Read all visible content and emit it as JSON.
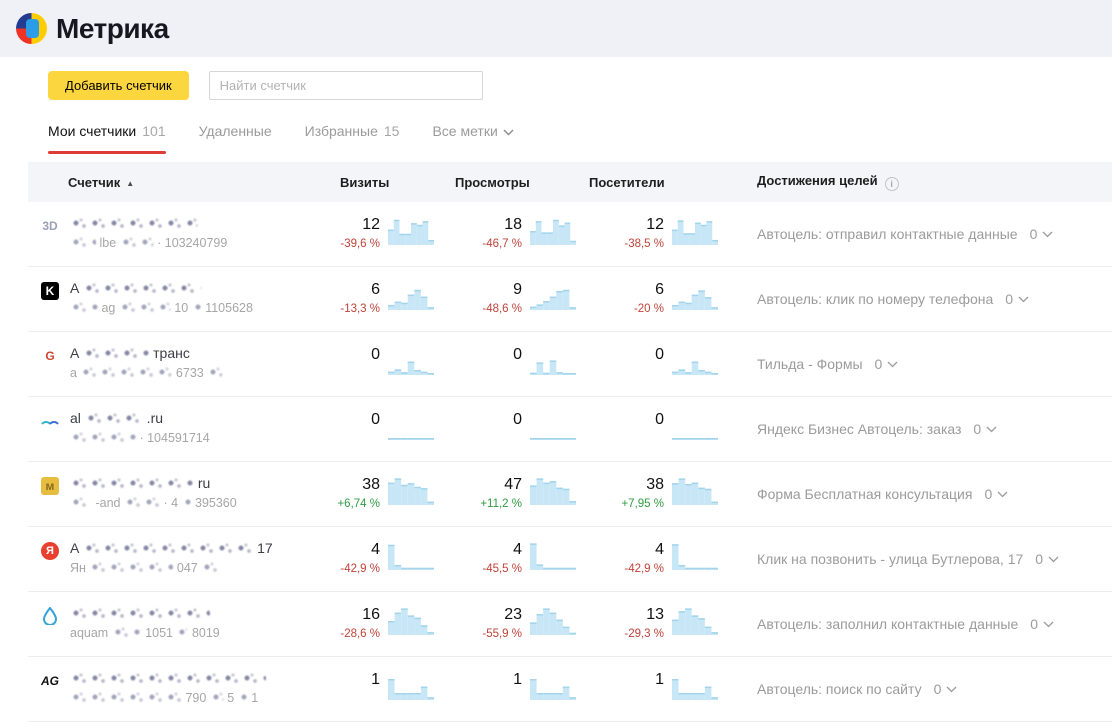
{
  "app": {
    "brand": "Метрика"
  },
  "toolbar": {
    "add_button": "Добавить счетчик",
    "search_placeholder": "Найти счетчик"
  },
  "tabs": [
    {
      "label": "Мои счетчики",
      "count": "101",
      "active": true
    },
    {
      "label": "Удаленные",
      "count": "",
      "active": false
    },
    {
      "label": "Избранные",
      "count": "15",
      "active": false
    },
    {
      "label": "Все метки",
      "count": "",
      "active": false,
      "dropdown": true
    }
  ],
  "table": {
    "columns": {
      "counter": "Счетчик",
      "visits": "Визиты",
      "views": "Просмотры",
      "visitors": "Посетители",
      "goals": "Достижения целей"
    }
  },
  "icons": {
    "sort_asc": "▲",
    "info": "i"
  },
  "colors": {
    "negative": "#bf4238",
    "positive": "#2f9b41",
    "spark_fill": "#c8e7f6",
    "spark_cap": "#a3d4ec",
    "accent_yellow": "#fcd63e",
    "tab_underline": "#dd3b33"
  },
  "chart_data": [
    {
      "type": "bar",
      "title": "row1-visits-sparkline",
      "values": [
        55,
        90,
        40,
        40,
        78,
        72,
        85,
        18
      ]
    },
    {
      "type": "bar",
      "title": "row5-visits-sparkline",
      "values": [
        80,
        95,
        72,
        78,
        65,
        60,
        12
      ]
    }
  ],
  "rows": [
    {
      "icon": {
        "kind": "text",
        "text": "3D",
        "color": "#9ba0b5",
        "italic": false
      },
      "name_parts": [
        {
          "blob": 128
        }
      ],
      "subtitle_parts": [
        {
          "blob": 26
        },
        {
          "text": "lbe"
        },
        {
          "blob": 34
        },
        {
          "text": "· 103240799"
        }
      ],
      "visits": {
        "value": "12",
        "change": "-39,6 %",
        "dir": "down",
        "spark": [
          55,
          90,
          40,
          40,
          78,
          72,
          85,
          18
        ]
      },
      "views": {
        "value": "18",
        "change": "-46,7 %",
        "dir": "down",
        "spark": [
          50,
          85,
          45,
          45,
          90,
          70,
          80,
          15
        ]
      },
      "visitors": {
        "value": "12",
        "change": "-38,5 %",
        "dir": "down",
        "spark": [
          55,
          88,
          42,
          42,
          80,
          72,
          85,
          18
        ]
      },
      "goal": {
        "label": "Автоцель: отправил контактные данные",
        "count": "0"
      }
    },
    {
      "icon": {
        "kind": "square",
        "text": "K",
        "bg": "#000000",
        "color": "#ffffff"
      },
      "name_parts": [
        {
          "text": "А"
        },
        {
          "blob": 118
        }
      ],
      "subtitle_parts": [
        {
          "blob": 28
        },
        {
          "text": "ag"
        },
        {
          "blob": 52
        },
        {
          "text": "10"
        },
        {
          "blob": 10
        },
        {
          "text": "1105628"
        }
      ],
      "visits": {
        "value": "6",
        "change": "-13,3 %",
        "dir": "down",
        "spark": [
          18,
          30,
          26,
          55,
          72,
          48,
          10
        ]
      },
      "views": {
        "value": "9",
        "change": "-48,6 %",
        "dir": "down",
        "spark": [
          12,
          20,
          32,
          48,
          68,
          72,
          10
        ]
      },
      "visitors": {
        "value": "6",
        "change": "-20 %",
        "dir": "down",
        "spark": [
          18,
          30,
          26,
          55,
          70,
          46,
          10
        ]
      },
      "goal": {
        "label": "Автоцель: клик по номеру телефона",
        "count": "0"
      }
    },
    {
      "icon": {
        "kind": "text",
        "text": "G",
        "color": "#d0452f",
        "italic": false,
        "bold": true
      },
      "name_parts": [
        {
          "text": "А"
        },
        {
          "blob": 66
        },
        {
          "text": "транс"
        }
      ],
      "subtitle_parts": [
        {
          "text": "a"
        },
        {
          "blob": 92
        },
        {
          "text": "6733"
        },
        {
          "blob": 16
        }
      ],
      "visits": {
        "value": "0",
        "change": "",
        "dir": "none",
        "spark": [
          12,
          20,
          10,
          48,
          18,
          12,
          6
        ]
      },
      "views": {
        "value": "0",
        "change": "",
        "dir": "none",
        "spark": [
          8,
          45,
          8,
          52,
          10,
          6,
          4
        ]
      },
      "visitors": {
        "value": "0",
        "change": "",
        "dir": "none",
        "spark": [
          12,
          20,
          10,
          48,
          18,
          12,
          6
        ]
      },
      "goal": {
        "label": "Тильда - Формы",
        "count": "0"
      }
    },
    {
      "icon": {
        "kind": "arcs",
        "colors": [
          "#35b6c9",
          "#3b6fd4"
        ]
      },
      "name_parts": [
        {
          "text": "al"
        },
        {
          "blob": 58
        },
        {
          "text": ".ru"
        }
      ],
      "subtitle_parts": [
        {
          "blob": 66
        },
        {
          "text": "· 104591714"
        }
      ],
      "visits": {
        "value": "0",
        "change": "",
        "dir": "none",
        "spark": [
          2,
          2,
          2,
          2,
          2,
          2,
          2
        ]
      },
      "views": {
        "value": "0",
        "change": "",
        "dir": "none",
        "spark": [
          2,
          2,
          2,
          2,
          2,
          2,
          2
        ]
      },
      "visitors": {
        "value": "0",
        "change": "",
        "dir": "none",
        "spark": [
          2,
          2,
          2,
          2,
          2,
          2,
          2
        ]
      },
      "goal": {
        "label": "Яндекс Бизнес Автоцель: заказ",
        "count": "0"
      }
    },
    {
      "icon": {
        "kind": "square",
        "text": "м",
        "bg": "#e6bd3f",
        "color": "#8a6d1f"
      },
      "name_parts": [
        {
          "blob": 124
        },
        {
          "text": "ru"
        }
      ],
      "subtitle_parts": [
        {
          "blob": 22
        },
        {
          "text": "-and"
        },
        {
          "blob": 36
        },
        {
          "text": "· 4"
        },
        {
          "blob": 10
        },
        {
          "text": "395360"
        }
      ],
      "visits": {
        "value": "38",
        "change": "+6,74 %",
        "dir": "up",
        "spark": [
          80,
          95,
          72,
          78,
          65,
          60,
          12
        ]
      },
      "views": {
        "value": "47",
        "change": "+11,2 %",
        "dir": "up",
        "spark": [
          70,
          95,
          80,
          85,
          62,
          58,
          14
        ]
      },
      "visitors": {
        "value": "38",
        "change": "+7,95 %",
        "dir": "up",
        "spark": [
          78,
          95,
          75,
          80,
          62,
          58,
          12
        ]
      },
      "goal": {
        "label": "Форма Бесплатная консультация",
        "count": "0"
      }
    },
    {
      "icon": {
        "kind": "circle",
        "text": "Я",
        "bg": "#e8402f",
        "color": "#ffffff"
      },
      "name_parts": [
        {
          "text": "А"
        },
        {
          "blob": 170
        },
        {
          "text": "17"
        }
      ],
      "subtitle_parts": [
        {
          "text": "Ян"
        },
        {
          "blob": 84
        },
        {
          "text": "047"
        },
        {
          "blob": 18
        }
      ],
      "visits": {
        "value": "4",
        "change": "-42,9 %",
        "dir": "down",
        "spark": [
          90,
          18,
          8,
          8,
          8,
          8,
          8
        ]
      },
      "views": {
        "value": "4",
        "change": "-45,5 %",
        "dir": "down",
        "spark": [
          95,
          20,
          8,
          8,
          8,
          8,
          8
        ]
      },
      "visitors": {
        "value": "4",
        "change": "-42,9 %",
        "dir": "down",
        "spark": [
          92,
          18,
          8,
          8,
          8,
          8,
          8
        ]
      },
      "goal": {
        "label": "Клик на позвонить - улица Бутлерова, 17",
        "count": "0"
      }
    },
    {
      "icon": {
        "kind": "drop",
        "color": "#36a3d9"
      },
      "name_parts": [
        {
          "blob": 140
        }
      ],
      "subtitle_parts": [
        {
          "text": "aquam"
        },
        {
          "blob": 30
        },
        {
          "text": "1051"
        },
        {
          "blob": 12
        },
        {
          "text": "8019"
        }
      ],
      "visits": {
        "value": "16",
        "change": "-28,6 %",
        "dir": "down",
        "spark": [
          50,
          80,
          95,
          70,
          62,
          35,
          10
        ]
      },
      "views": {
        "value": "23",
        "change": "-55,9 %",
        "dir": "down",
        "spark": [
          45,
          75,
          95,
          80,
          55,
          30,
          8
        ]
      },
      "visitors": {
        "value": "13",
        "change": "-29,3 %",
        "dir": "down",
        "spark": [
          55,
          85,
          95,
          70,
          60,
          30,
          10
        ]
      },
      "goal": {
        "label": "Автоцель: заполнил контактные данные",
        "count": "0"
      }
    },
    {
      "icon": {
        "kind": "text",
        "text": "AG",
        "color": "#111111",
        "italic": true,
        "bold": true
      },
      "name_parts": [
        {
          "blob": 196
        }
      ],
      "subtitle_parts": [
        {
          "blob": 112
        },
        {
          "text": "790"
        },
        {
          "blob": 14
        },
        {
          "text": "5"
        },
        {
          "blob": 10
        },
        {
          "text": "1"
        }
      ],
      "visits": {
        "value": "1",
        "change": "",
        "dir": "none",
        "spark": [
          75,
          25,
          25,
          25,
          25,
          48,
          10
        ]
      },
      "views": {
        "value": "1",
        "change": "",
        "dir": "none",
        "spark": [
          75,
          25,
          25,
          25,
          25,
          48,
          10
        ]
      },
      "visitors": {
        "value": "1",
        "change": "",
        "dir": "none",
        "spark": [
          75,
          25,
          25,
          25,
          25,
          48,
          10
        ]
      },
      "goal": {
        "label": "Автоцель: поиск по сайту",
        "count": "0"
      }
    }
  ]
}
